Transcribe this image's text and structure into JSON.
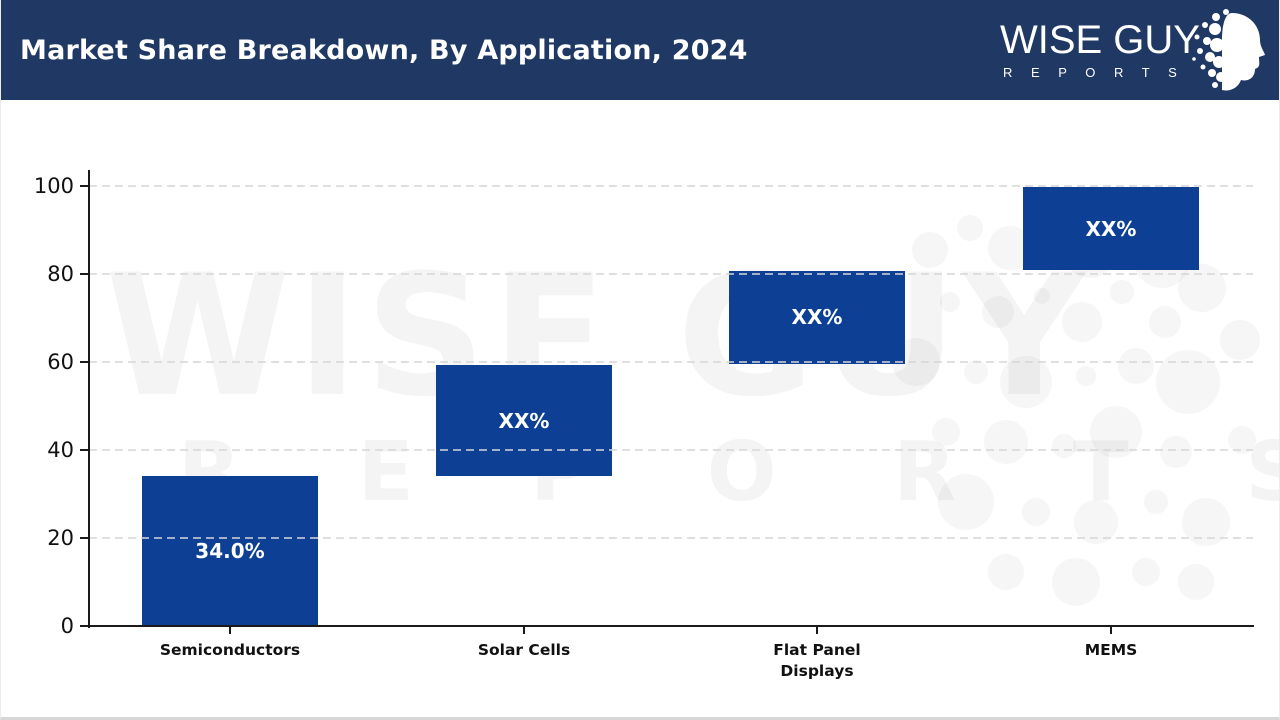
{
  "header": {
    "title": "Market Share Breakdown, By Application, 2024",
    "bg_color": "#1f3864",
    "logo": {
      "name": "Wise Guy Reports",
      "line1": "WISE GUY",
      "line2": "R E P O R T S"
    }
  },
  "watermark": {
    "line1": "WISE GUY",
    "line2": "R E P O R T S"
  },
  "chart_data": {
    "type": "bar",
    "subtype": "waterfall-style floating bars",
    "title": "Market Share Breakdown, By Application, 2024",
    "categories": [
      "Semiconductors",
      "Solar Cells",
      "Flat Panel Displays",
      "MEMS"
    ],
    "bars": [
      {
        "category": "Semiconductors",
        "label": "34.0%",
        "start": 0,
        "end": 34
      },
      {
        "category": "Solar Cells",
        "label": "XX%",
        "start": 34,
        "end": 59.4
      },
      {
        "category": "Flat Panel Displays",
        "label": "XX%",
        "start": 59.6,
        "end": 80.7
      },
      {
        "category": "MEMS",
        "label": "XX%",
        "start": 80.8,
        "end": 99.8
      }
    ],
    "bar_color": "#0d4094",
    "bar_label_color": "#ffffff",
    "xlabel": "",
    "ylabel": "",
    "ylim": [
      0,
      100
    ],
    "yticks": [
      0,
      20,
      40,
      60,
      80,
      100
    ],
    "grid": {
      "axis": "y",
      "style": "dashed",
      "color": "#dcdcdc",
      "drawn_above_bars": true
    },
    "legend": "none"
  }
}
